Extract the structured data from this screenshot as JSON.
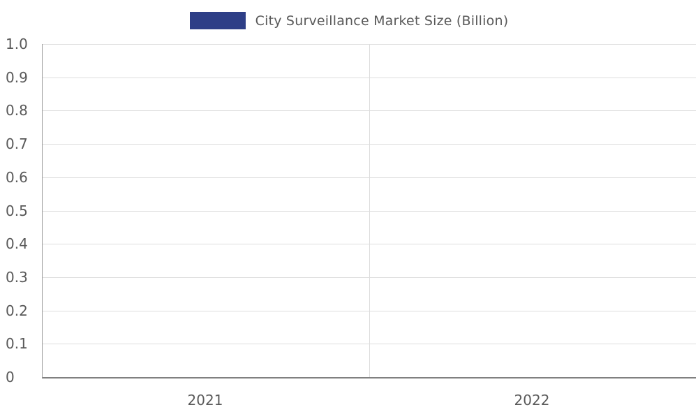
{
  "chart_data": {
    "type": "bar",
    "title": "City Surveillance Market Size (Billion)",
    "categories": [
      "2021",
      "2022"
    ],
    "series": [
      {
        "name": "City Surveillance Market Size (Billion)",
        "values": [
          0,
          0
        ]
      }
    ],
    "xlabel": "",
    "ylabel": "",
    "ylim": [
      0,
      1.0
    ],
    "yticks": [
      "1.0",
      "0.9",
      "0.8",
      "0.7",
      "0.6",
      "0.5",
      "0.4",
      "0.3",
      "0.2",
      "0.1",
      "0"
    ],
    "grid": true,
    "legend_position": "top",
    "colors": {
      "series": "#2e3f87",
      "gridline": "#dddddd",
      "axis": "#808080",
      "text": "#595959"
    }
  }
}
